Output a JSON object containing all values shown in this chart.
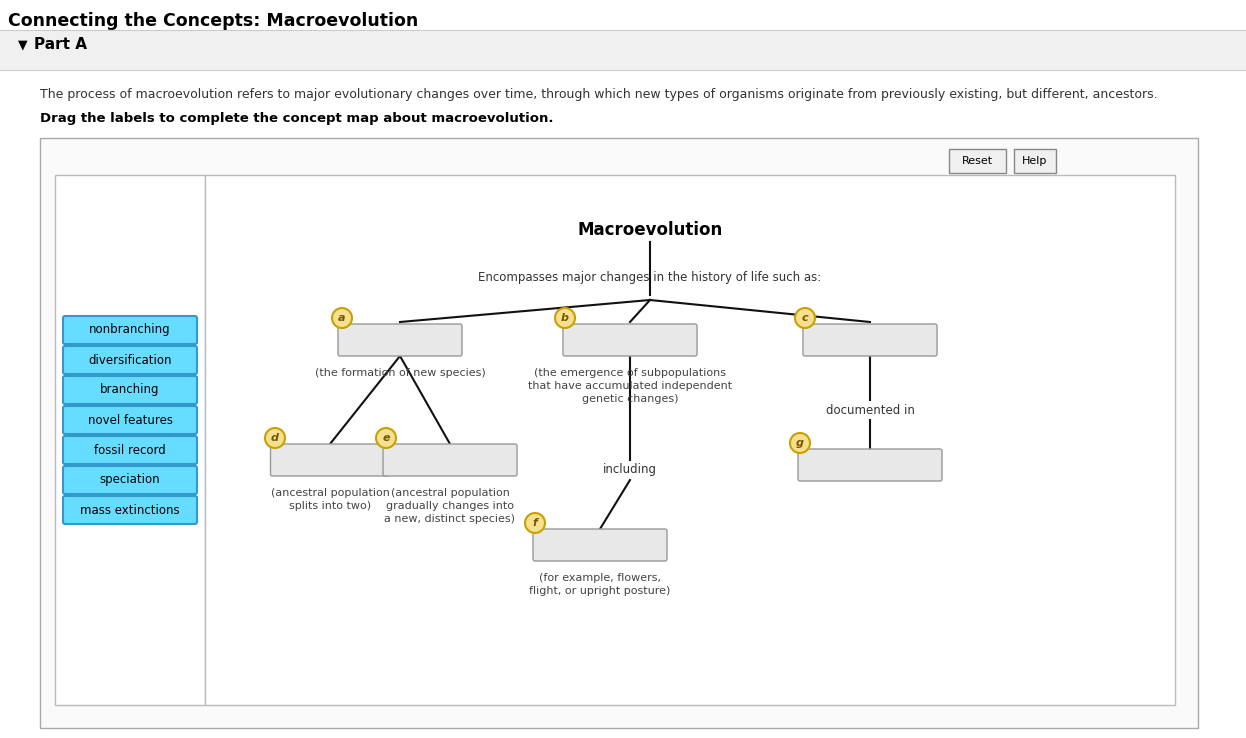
{
  "title": "Connecting the Concepts: Macroevolution",
  "part": "Part A",
  "description": "The process of macroevolution refers to major evolutionary changes over time, through which new types of organisms originate from previously existing, but different, ancestors.",
  "instruction": "Drag the labels to complete the concept map about macroevolution.",
  "bg_color": "#ffffff",
  "label_bg_color": "#66ddff",
  "button_reset": "Reset",
  "button_help": "Help",
  "labels": [
    "nonbranching",
    "diversification",
    "branching",
    "novel features",
    "fossil record",
    "speciation",
    "mass extinctions"
  ],
  "connector_text": "Encompasses major changes in the history of life such as:",
  "text_including": "including",
  "text_documented": "documented in",
  "hint_a": "(the formation of new species)",
  "hint_b": "(the emergence of subpopulations\nthat have accumulated independent\ngenetic changes)",
  "hint_d": "(ancestral population\nsplits into two)",
  "hint_e": "(ancestral population\ngradually changes into\na new, distinct species)",
  "hint_f": "(for example, flowers,\nflight, or upright posture)"
}
